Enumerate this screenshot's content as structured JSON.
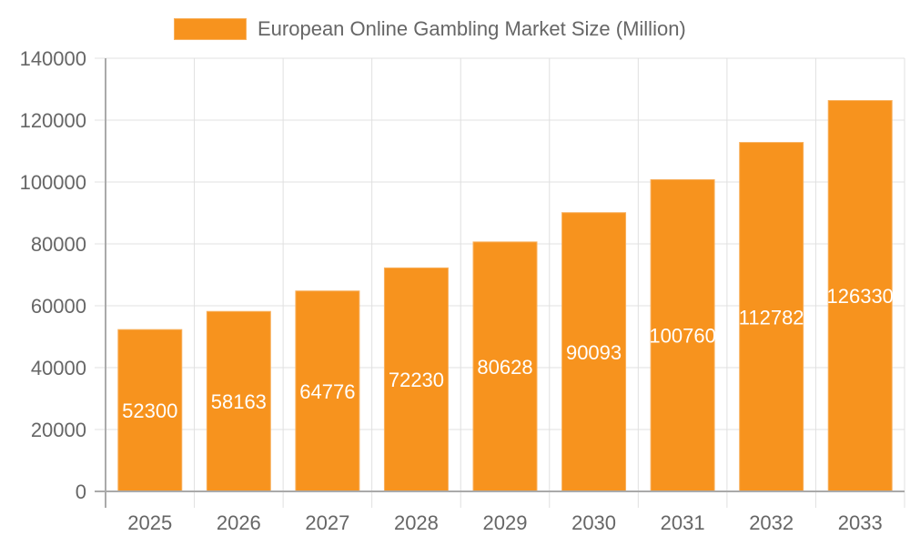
{
  "chart_data": {
    "type": "bar",
    "title": "",
    "categories": [
      "2025",
      "2026",
      "2027",
      "2028",
      "2029",
      "2030",
      "2031",
      "2032",
      "2033"
    ],
    "series": [
      {
        "name": "European Online Gambling Market Size (Million)",
        "values": [
          52300,
          58163,
          64776,
          72230,
          80628,
          90093,
          100760,
          112782,
          126330
        ],
        "color": "#f7931e"
      }
    ],
    "xlabel": "",
    "ylabel": "",
    "ylim": [
      0,
      140000
    ],
    "yticks": [
      0,
      20000,
      40000,
      60000,
      80000,
      100000,
      120000,
      140000
    ],
    "grid": true,
    "legend_position": "top",
    "data_labels": true,
    "data_label_color": "#ffffff"
  },
  "legend": {
    "label": "European Online Gambling Market Size (Million)",
    "color": "#f7931e"
  },
  "colors": {
    "bar": "#f7931e",
    "bar_border": "#f8b15f",
    "grid": "#e0e0e0",
    "axis": "#aaaaaa",
    "tick_text": "#666666"
  }
}
